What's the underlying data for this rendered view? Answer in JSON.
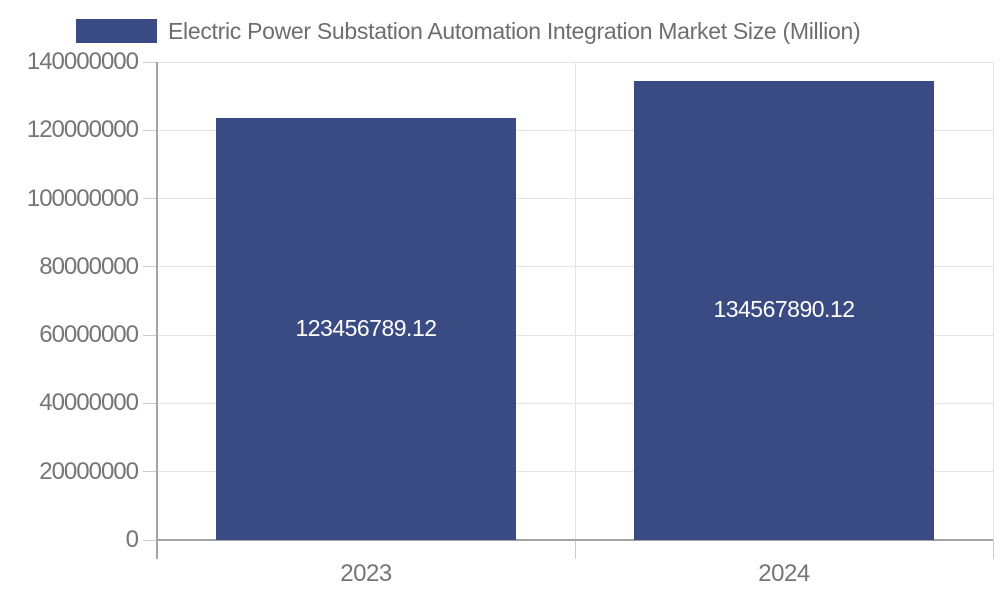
{
  "header": {
    "title": "Electric Power Substation Automation Integration Market Size (Million)"
  },
  "legend": {
    "swatch_color": "#3A4A82",
    "label": "Electric Power Substation Automation Integration Market Size (Million)"
  },
  "chart_data": {
    "type": "bar",
    "title": "Electric Power Substation Automation Integration Market Size (Million)",
    "categories": [
      "2023",
      "2024"
    ],
    "values": [
      123456789.12,
      134567890.12
    ],
    "data_labels": [
      "123456789.12",
      "134567890.12"
    ],
    "xlabel": "",
    "ylabel": "",
    "ylim": [
      0,
      140000000
    ],
    "yticks": [
      0,
      20000000,
      40000000,
      60000000,
      80000000,
      100000000,
      120000000,
      140000000
    ],
    "ytick_labels": [
      "0",
      "20000000",
      "40000000",
      "60000000",
      "80000000",
      "100000000",
      "120000000",
      "140000000"
    ],
    "grid": true,
    "legend_position": "top-left"
  },
  "colors": {
    "bar": "#3A4A82",
    "bar_label": "#FFFFFF",
    "gridline": "#E4E4E4",
    "axis_line": "#A3A3A3",
    "tick_mark": "#CCCCCC",
    "tick_text": "#757575",
    "title_text": "#6E6E6E"
  }
}
